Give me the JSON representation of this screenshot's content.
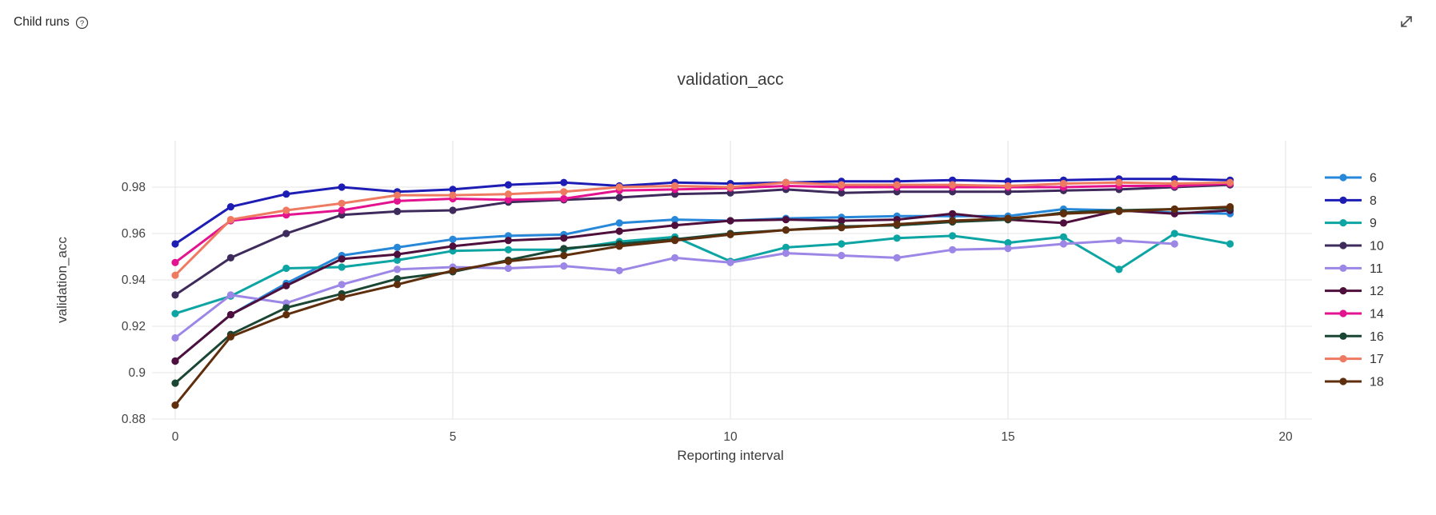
{
  "header": {
    "title": "Child runs",
    "help_icon": "question-mark-circle-icon",
    "expand_icon": "diagonal-expand-arrow-icon"
  },
  "chart_data": {
    "type": "line",
    "title": "validation_acc",
    "xlabel": "Reporting interval",
    "ylabel": "validation_acc",
    "xlim": [
      -0.42,
      20.47
    ],
    "ylim": [
      0.88,
      1.0
    ],
    "x_ticks": [
      0,
      5,
      10,
      15,
      20
    ],
    "y_ticks": [
      0.88,
      0.9,
      0.92,
      0.94,
      0.96,
      0.98
    ],
    "y_tick_labels": [
      "0.88",
      "0.9",
      "0.92",
      "0.94",
      "0.96",
      "0.98"
    ],
    "grid": true,
    "legend_position": "right",
    "marker": "circle",
    "colors": {
      "grid": "#e9e9e9",
      "tick_text": "#444444",
      "title_text": "#3b3b3b"
    },
    "series": [
      {
        "name": "6",
        "color": "#2787d8",
        "x_step": 1,
        "values": [
          0.905,
          0.925,
          0.9385,
          0.9505,
          0.954,
          0.9575,
          0.959,
          0.9595,
          0.9645,
          0.966,
          0.9655,
          0.9665,
          0.967,
          0.9675,
          0.9675,
          0.9675,
          0.9705,
          0.97,
          0.969,
          0.9685
        ]
      },
      {
        "name": "8",
        "color": "#1d1db5",
        "x_step": 1,
        "values": [
          0.9555,
          0.9715,
          0.977,
          0.98,
          0.978,
          0.979,
          0.981,
          0.982,
          0.9805,
          0.982,
          0.9815,
          0.982,
          0.9825,
          0.9825,
          0.983,
          0.9825,
          0.983,
          0.9835,
          0.9835,
          0.983
        ]
      },
      {
        "name": "9",
        "color": "#0ca5a3",
        "x_step": 1,
        "values": [
          0.9255,
          0.933,
          0.945,
          0.9455,
          0.9485,
          0.9525,
          0.953,
          0.953,
          0.9565,
          0.9585,
          0.948,
          0.954,
          0.9555,
          0.958,
          0.959,
          0.956,
          0.9585,
          0.9445,
          0.96,
          0.9555
        ]
      },
      {
        "name": "10",
        "color": "#3e2b5c",
        "x_step": 1,
        "values": [
          0.9335,
          0.9495,
          0.96,
          0.968,
          0.9695,
          0.97,
          0.9735,
          0.9745,
          0.9755,
          0.977,
          0.9775,
          0.979,
          0.9775,
          0.978,
          0.978,
          0.978,
          0.9785,
          0.979,
          0.98,
          0.981
        ]
      },
      {
        "name": "11",
        "color": "#9d87e6",
        "x_step": 1,
        "values": [
          0.915,
          0.9335,
          0.93,
          0.938,
          0.9445,
          0.9455,
          0.945,
          0.946,
          0.944,
          0.9495,
          0.9475,
          0.9515,
          0.9505,
          0.9495,
          0.953,
          0.9535,
          0.9555,
          0.957,
          0.9555
        ]
      },
      {
        "name": "12",
        "color": "#4f0f3c",
        "x_step": 1,
        "values": [
          0.905,
          0.925,
          0.9375,
          0.949,
          0.951,
          0.9545,
          0.957,
          0.958,
          0.961,
          0.9635,
          0.9655,
          0.966,
          0.9655,
          0.966,
          0.9685,
          0.966,
          0.9645,
          0.97,
          0.9685,
          0.97
        ]
      },
      {
        "name": "14",
        "color": "#e3138f",
        "x_step": 1,
        "values": [
          0.9475,
          0.9655,
          0.968,
          0.97,
          0.974,
          0.975,
          0.9745,
          0.975,
          0.9785,
          0.979,
          0.9795,
          0.9805,
          0.98,
          0.98,
          0.98,
          0.98,
          0.98,
          0.9805,
          0.9805,
          0.9815
        ]
      },
      {
        "name": "16",
        "color": "#1c4634",
        "x_step": 1,
        "values": [
          0.8955,
          0.9165,
          0.928,
          0.934,
          0.9405,
          0.9435,
          0.9485,
          0.9535,
          0.9555,
          0.9575,
          0.96,
          0.9615,
          0.963,
          0.9635,
          0.965,
          0.966,
          0.969,
          0.97,
          0.9705,
          0.971
        ]
      },
      {
        "name": "17",
        "color": "#ef7a62",
        "x_step": 1,
        "values": [
          0.942,
          0.966,
          0.97,
          0.973,
          0.9765,
          0.9765,
          0.977,
          0.978,
          0.98,
          0.9805,
          0.98,
          0.982,
          0.981,
          0.981,
          0.981,
          0.9805,
          0.9815,
          0.982,
          0.9815,
          0.982
        ]
      },
      {
        "name": "18",
        "color": "#5f2e0c",
        "x_step": 1,
        "values": [
          0.886,
          0.9155,
          0.925,
          0.9325,
          0.938,
          0.944,
          0.948,
          0.9505,
          0.9545,
          0.957,
          0.9595,
          0.9615,
          0.9625,
          0.964,
          0.9655,
          0.9665,
          0.9685,
          0.9695,
          0.9705,
          0.9715
        ]
      }
    ]
  }
}
